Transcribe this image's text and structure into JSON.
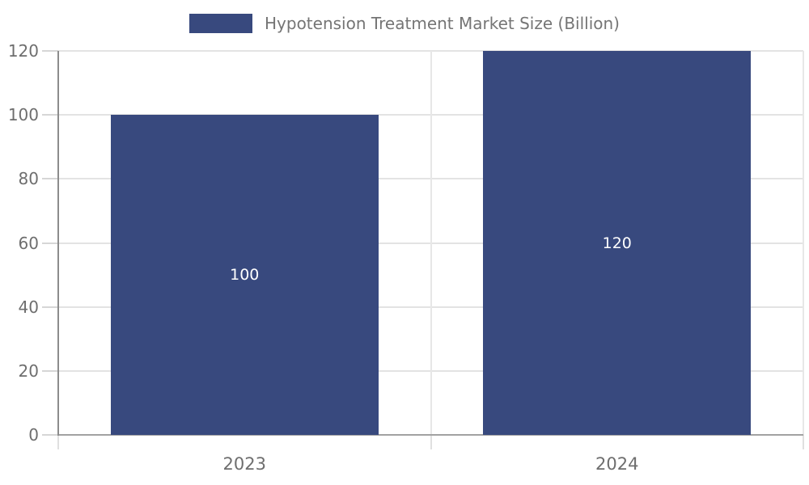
{
  "chart_data": {
    "type": "bar",
    "title": "",
    "categories": [
      "2023",
      "2024"
    ],
    "series": [
      {
        "name": "Hypotension Treatment Market Size (Billion)",
        "values": [
          100,
          120
        ]
      }
    ],
    "data_labels": [
      "100",
      "120"
    ],
    "xlabel": "",
    "ylabel": "",
    "ylim": [
      0,
      120
    ],
    "yticks": [
      0,
      20,
      40,
      60,
      80,
      100,
      120
    ],
    "grid": true,
    "legend_position": "top-center",
    "legend": {
      "label": "Hypotension Treatment Market Size (Billion)"
    },
    "colors": {
      "bar_fill": "#38497E",
      "data_label_text": "#ffffff",
      "legend_text": "#757575",
      "tick_label_text": "#6e6e6e",
      "gridline": "#e3e3e3",
      "axis_line": "#8c8c8c"
    }
  }
}
